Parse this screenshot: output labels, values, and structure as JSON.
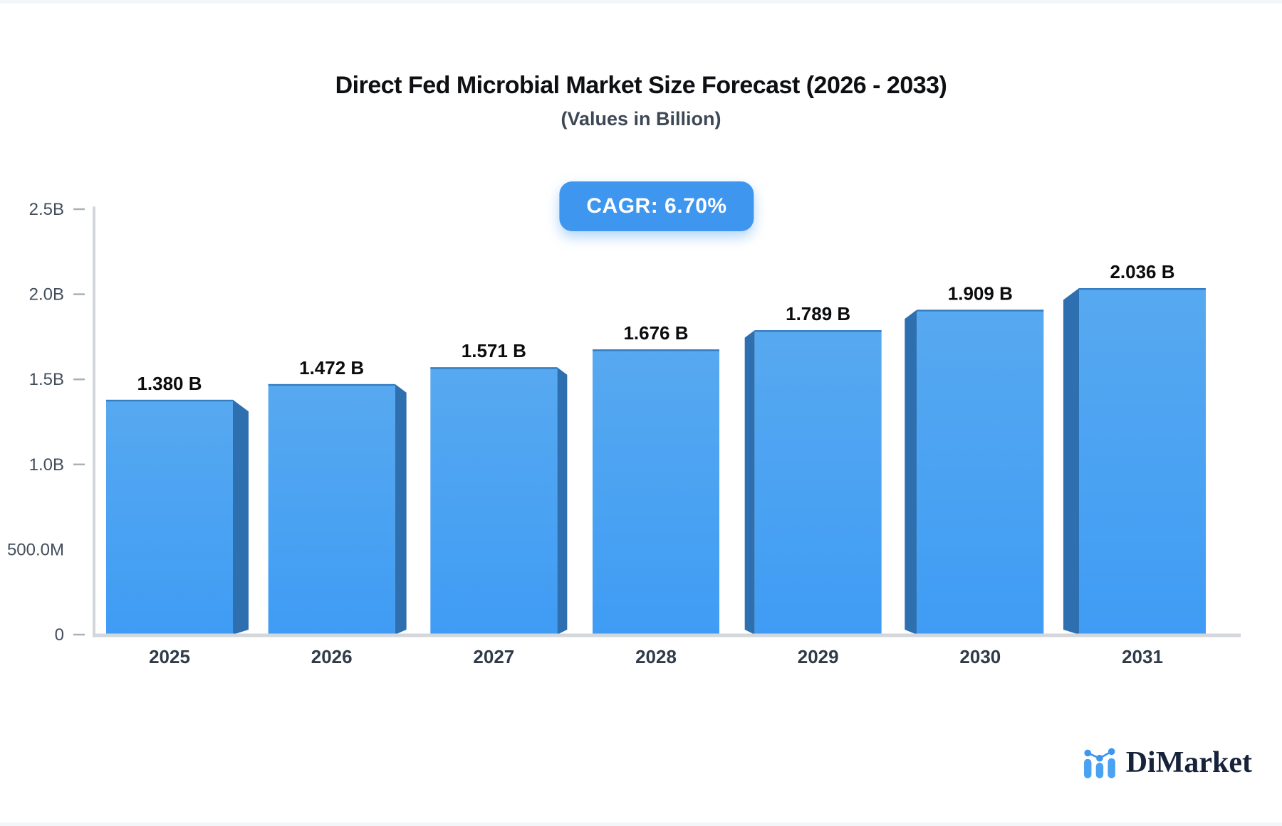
{
  "header": {
    "title": "Direct Fed Microbial Market Size Forecast (2026 - 2033)",
    "subtitle": "(Values in Billion)",
    "cagr_badge": "CAGR: 6.70%"
  },
  "chart_data": {
    "type": "bar",
    "title": "Direct Fed Microbial Market Size Forecast (2026 - 2033)",
    "subtitle": "(Values in Billion)",
    "cagr_percent": "6.70%",
    "unit": "Billion USD",
    "categories": [
      "2025",
      "2026",
      "2027",
      "2028",
      "2029",
      "2030",
      "2031"
    ],
    "values": [
      1.38,
      1.472,
      1.571,
      1.676,
      1.789,
      1.909,
      2.036
    ],
    "value_labels": [
      "1.380 B",
      "1.472 B",
      "1.571 B",
      "1.676 B",
      "1.789 B",
      "1.909 B",
      "2.036 B"
    ],
    "ylim": [
      0,
      2.5
    ],
    "yticks": [
      {
        "label": "2.5B",
        "value": 2.5,
        "dash": true
      },
      {
        "label": "2.0B",
        "value": 2.0,
        "dash": true
      },
      {
        "label": "1.5B",
        "value": 1.5,
        "dash": true
      },
      {
        "label": "1.0B",
        "value": 1.0,
        "dash": true
      },
      {
        "label": "500.0M",
        "value": 0.5,
        "dash": false
      },
      {
        "label": "0",
        "value": 0.0,
        "dash": true
      }
    ],
    "grid": false,
    "legend": false,
    "colors": {
      "bar_face_top": "#57a9f0",
      "bar_face_bottom": "#3f9cf4",
      "bar_top_edge": "#357dc0",
      "bar_side": "#2e70af",
      "axis_line": "#d3d7db",
      "tick_dash": "#a9b0b8",
      "ytick_text": "#434e5c",
      "xtick_text": "#303b4a",
      "value_text": "#0b0c0e",
      "badge": "#3e96ef"
    }
  },
  "branding": {
    "logo_text": "DiMarket",
    "logo_icon": "bar-line-chart-icon",
    "logo_icon_color": "#4aa2f1",
    "logo_text_color": "#16233a"
  }
}
